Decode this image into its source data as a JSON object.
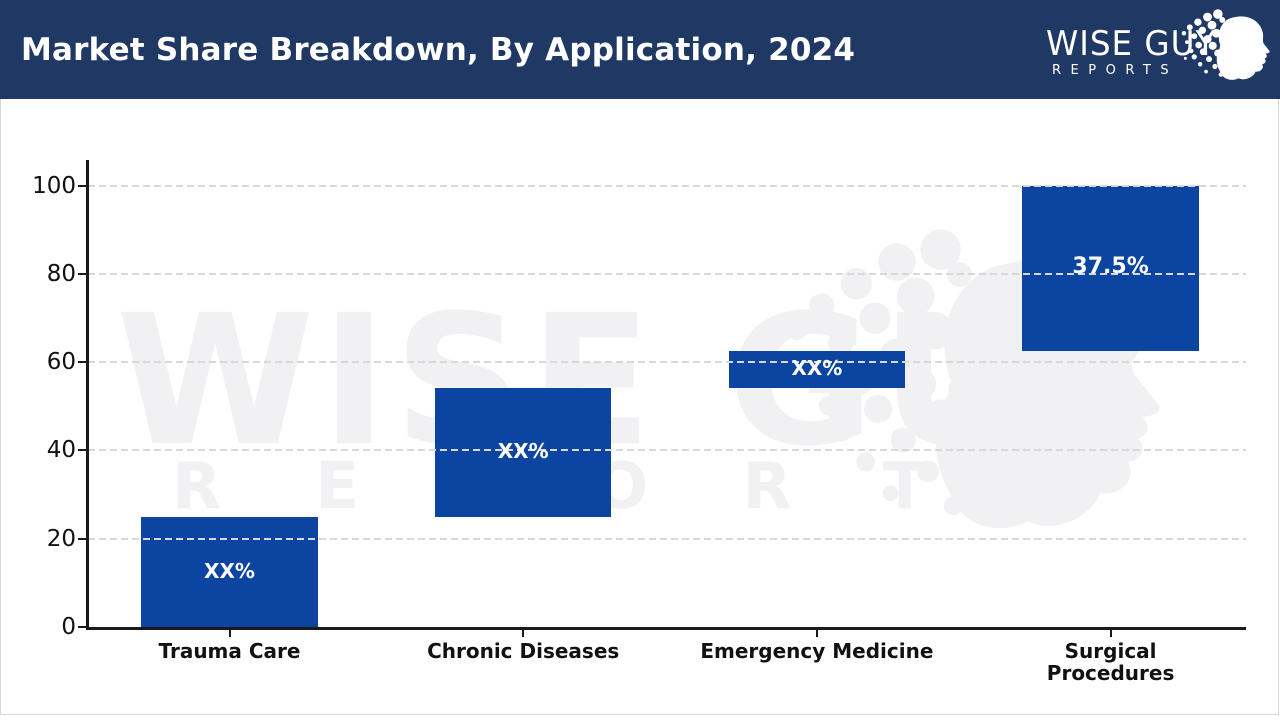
{
  "header": {
    "title": "Market Share Breakdown, By Application, 2024",
    "logo": {
      "name": "WISE GUY",
      "sub": "REPORTS"
    }
  },
  "watermark": {
    "name": "WISE GUY",
    "sub": "REPORTS"
  },
  "colors": {
    "header_bg": "#203864",
    "bar": "#0B45A1",
    "grid": "#d8d8d8",
    "axis": "#1a1a1a",
    "bar_label": "#ffffff",
    "watermark": "#f1f1f3"
  },
  "chart_data": {
    "type": "bar",
    "subtype": "waterfall",
    "title": "Market Share Breakdown, By Application, 2024",
    "categories": [
      "Trauma Care",
      "Chronic Diseases",
      "Emergency Medicine",
      "Surgical\nProcedures"
    ],
    "segments": [
      {
        "category": "Trauma Care",
        "start": 0,
        "end": 25,
        "label": "XX%"
      },
      {
        "category": "Chronic Diseases",
        "start": 25,
        "end": 54.2,
        "label": "XX%"
      },
      {
        "category": "Emergency Medicine",
        "start": 54.2,
        "end": 62.5,
        "label": "XX%"
      },
      {
        "category": "Surgical Procedures",
        "start": 62.5,
        "end": 100,
        "label": "37.5%"
      }
    ],
    "xlabel": "",
    "ylabel": "",
    "ylim": [
      0,
      100
    ],
    "yticks": [
      0,
      20,
      40,
      60,
      80,
      100
    ],
    "grid": "horizontal-dashed",
    "legend_position": "none"
  }
}
